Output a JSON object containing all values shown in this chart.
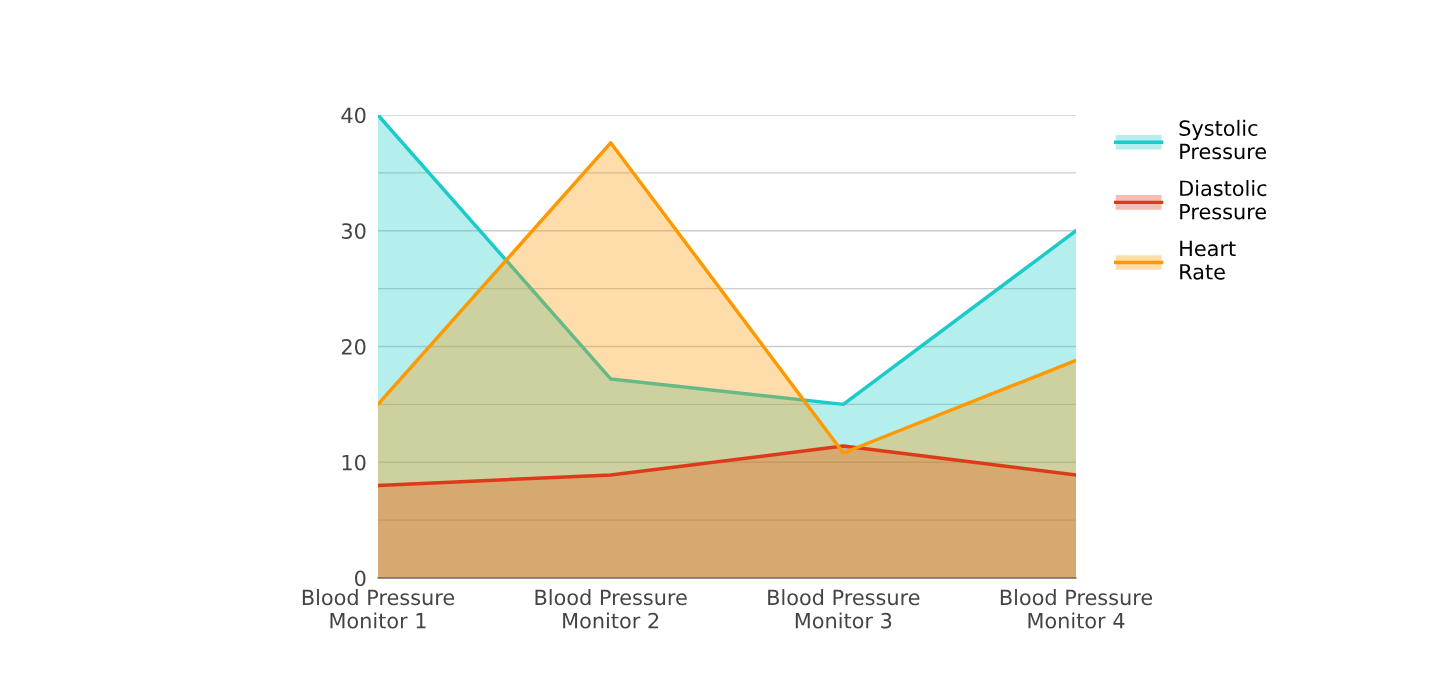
{
  "chart_data": {
    "type": "area",
    "categories": [
      "Blood Pressure\nMonitor 1",
      "Blood Pressure\nMonitor 2",
      "Blood Pressure\nMonitor 3",
      "Blood Pressure\nMonitor 4"
    ],
    "series": [
      {
        "name": "Systolic Pressure",
        "color": "#1ccbc9",
        "values": [
          40,
          17.2,
          15,
          30
        ]
      },
      {
        "name": "Diastolic Pressure",
        "color": "#dd3a1a",
        "values": [
          8,
          8.9,
          11.4,
          8.9
        ]
      },
      {
        "name": "Heart Rate",
        "color": "#ff9900",
        "values": [
          15,
          37.6,
          10.8,
          18.8
        ]
      }
    ],
    "ylim": [
      0,
      40
    ],
    "yticks": [
      0,
      {
        "value": 5,
        "label": null
      },
      10,
      {
        "value": 15,
        "label": null
      },
      20,
      {
        "value": 25,
        "label": null
      },
      30,
      {
        "value": 35,
        "label": null
      },
      40
    ],
    "grid": "y",
    "legend": "right",
    "marker": "none",
    "line_style": "solid"
  }
}
